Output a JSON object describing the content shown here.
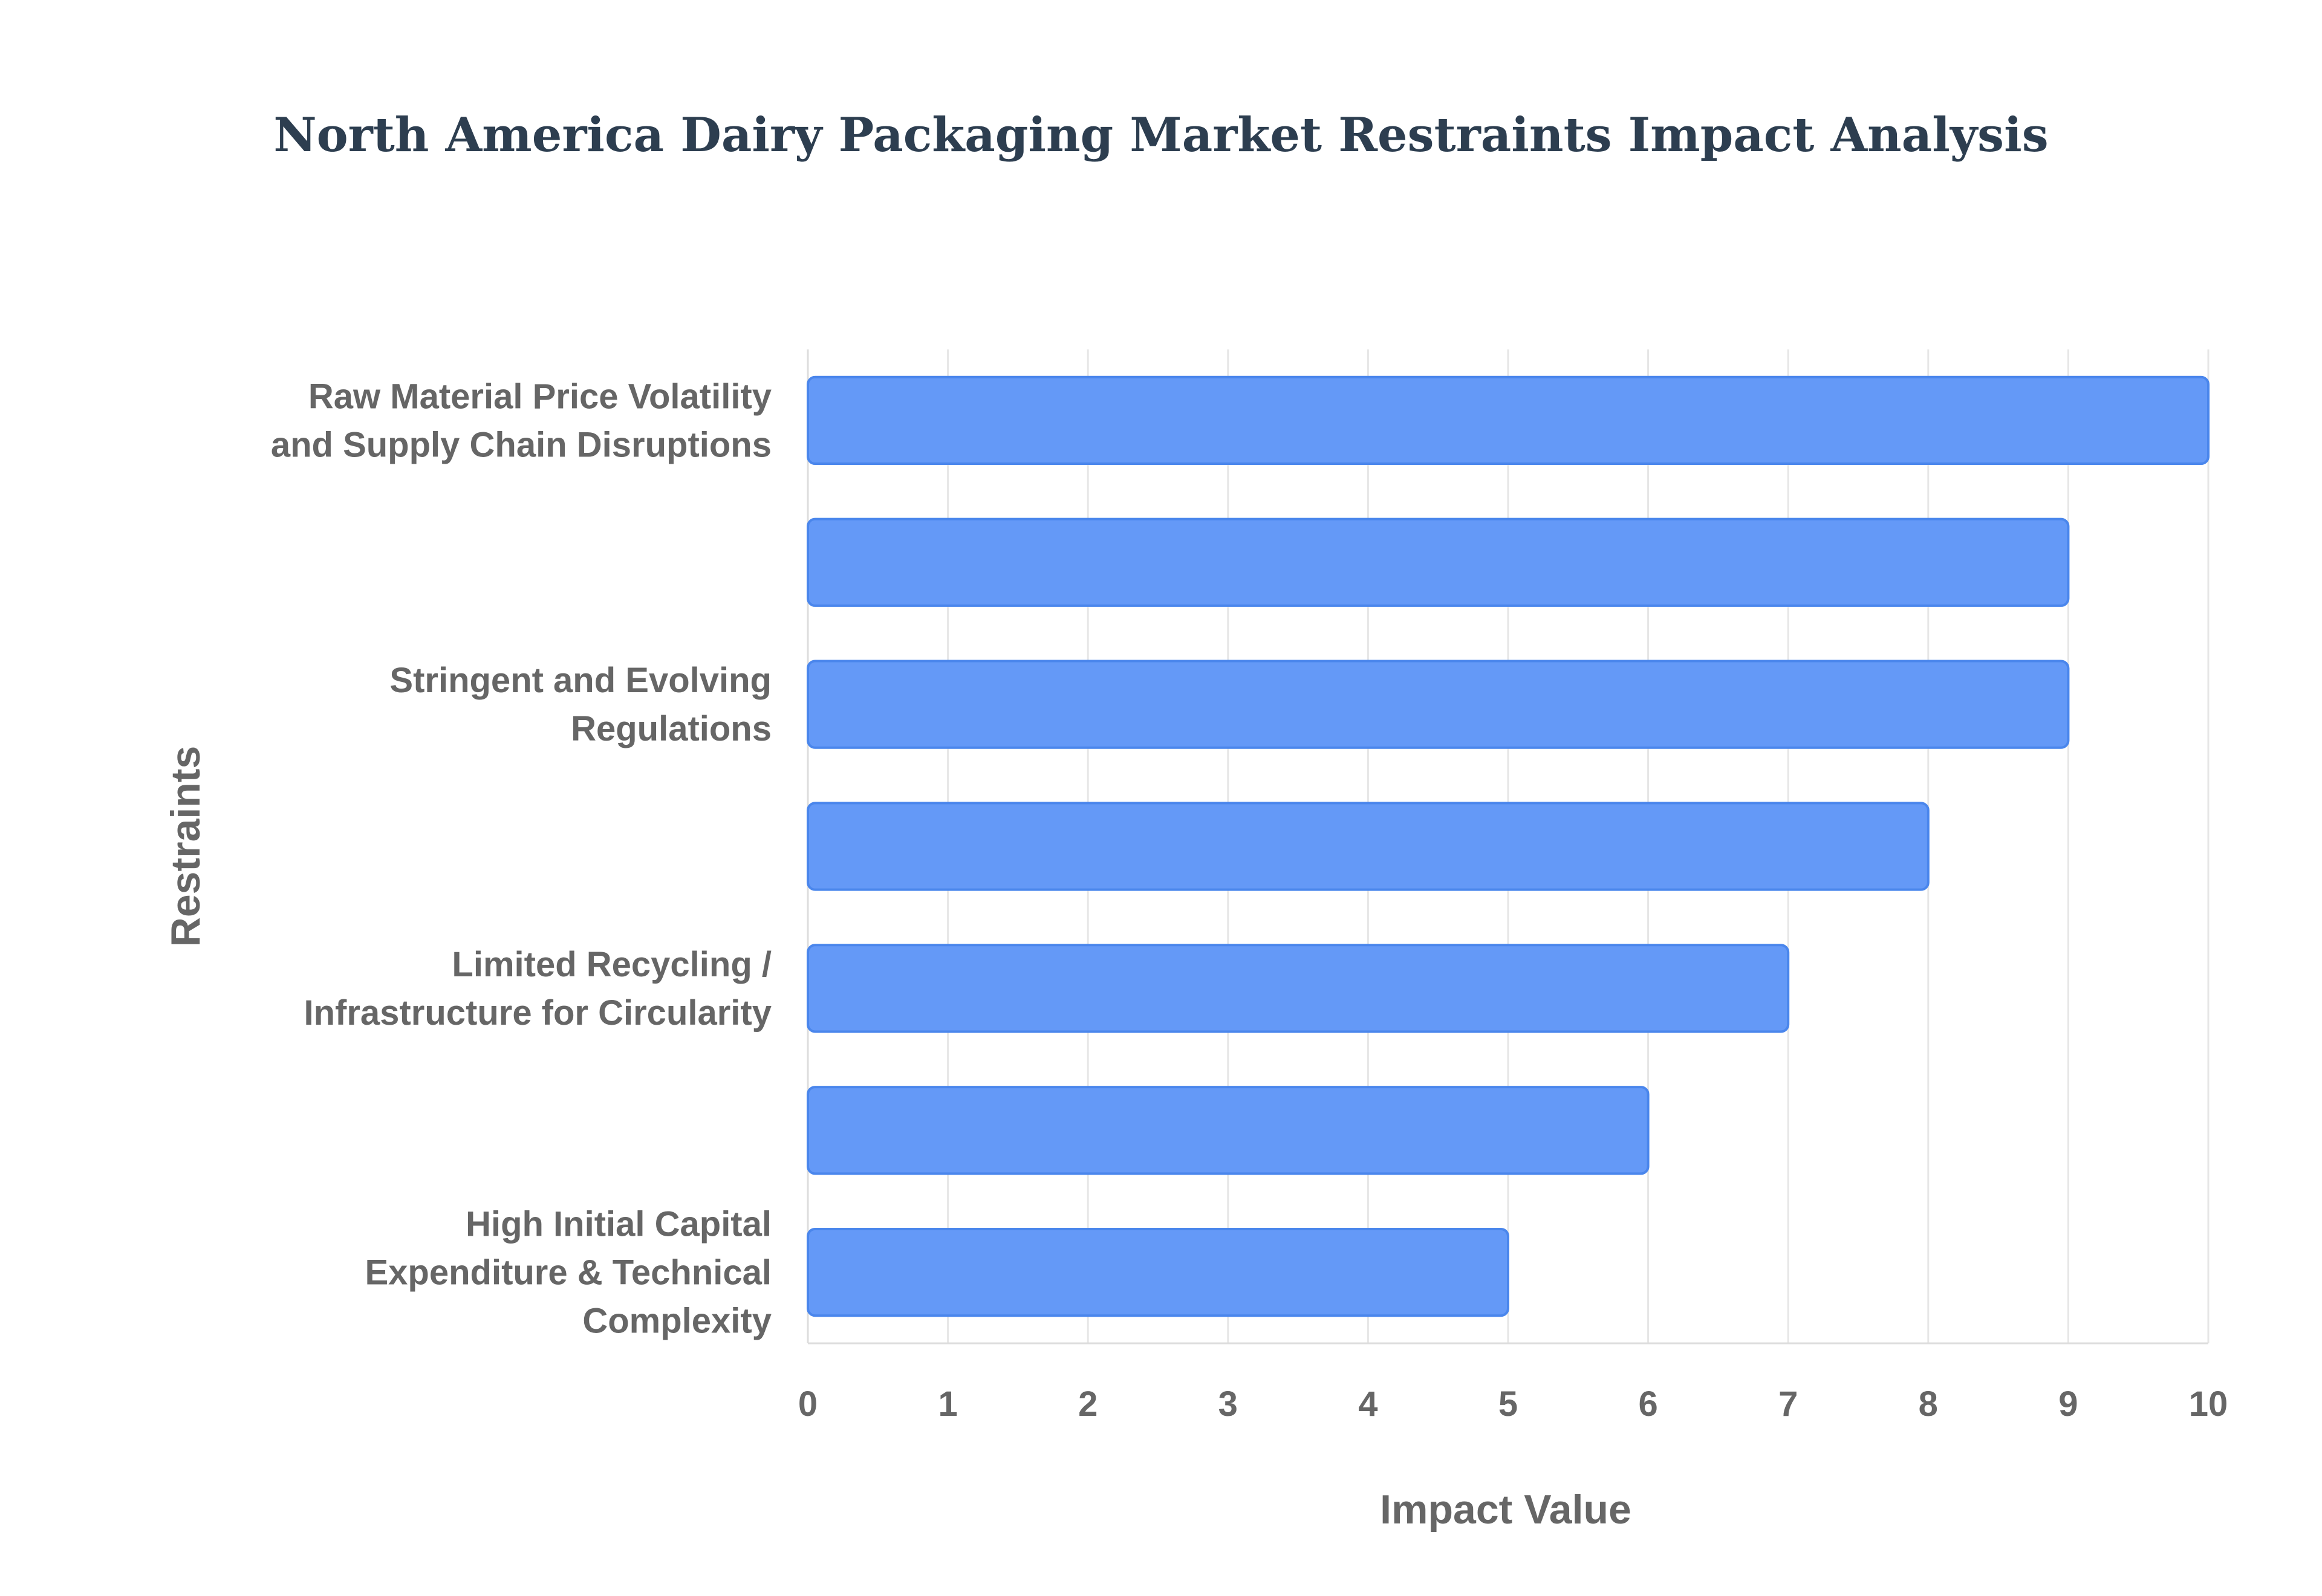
{
  "chart_data": {
    "type": "bar",
    "orientation": "horizontal",
    "title": "North America Dairy Packaging Market Restraints Impact Analysis",
    "xlabel": "Impact Value",
    "ylabel": "Restraints",
    "xlim": [
      0,
      10
    ],
    "x_ticks": [
      "0",
      "1",
      "2",
      "3",
      "4",
      "5",
      "6",
      "7",
      "8",
      "9",
      "10"
    ],
    "grid": true,
    "legend": "none",
    "categories": [
      [
        "Raw Material Price Volatility",
        "and Supply Chain Disruptions"
      ],
      [],
      [
        "Stringent and Evolving",
        "Regulations"
      ],
      [],
      [
        "Limited Recycling /",
        "Infrastructure for Circularity"
      ],
      [],
      [
        "High Initial Capital",
        "Expenditure & Technical",
        "Complexity"
      ]
    ],
    "values": [
      10,
      9,
      9,
      8,
      7,
      6,
      5
    ],
    "colors": {
      "bar": "#6499f7",
      "bar_edge": "#4a86ec",
      "grid": "#e6e6e6",
      "axis": "#dddddd"
    }
  }
}
